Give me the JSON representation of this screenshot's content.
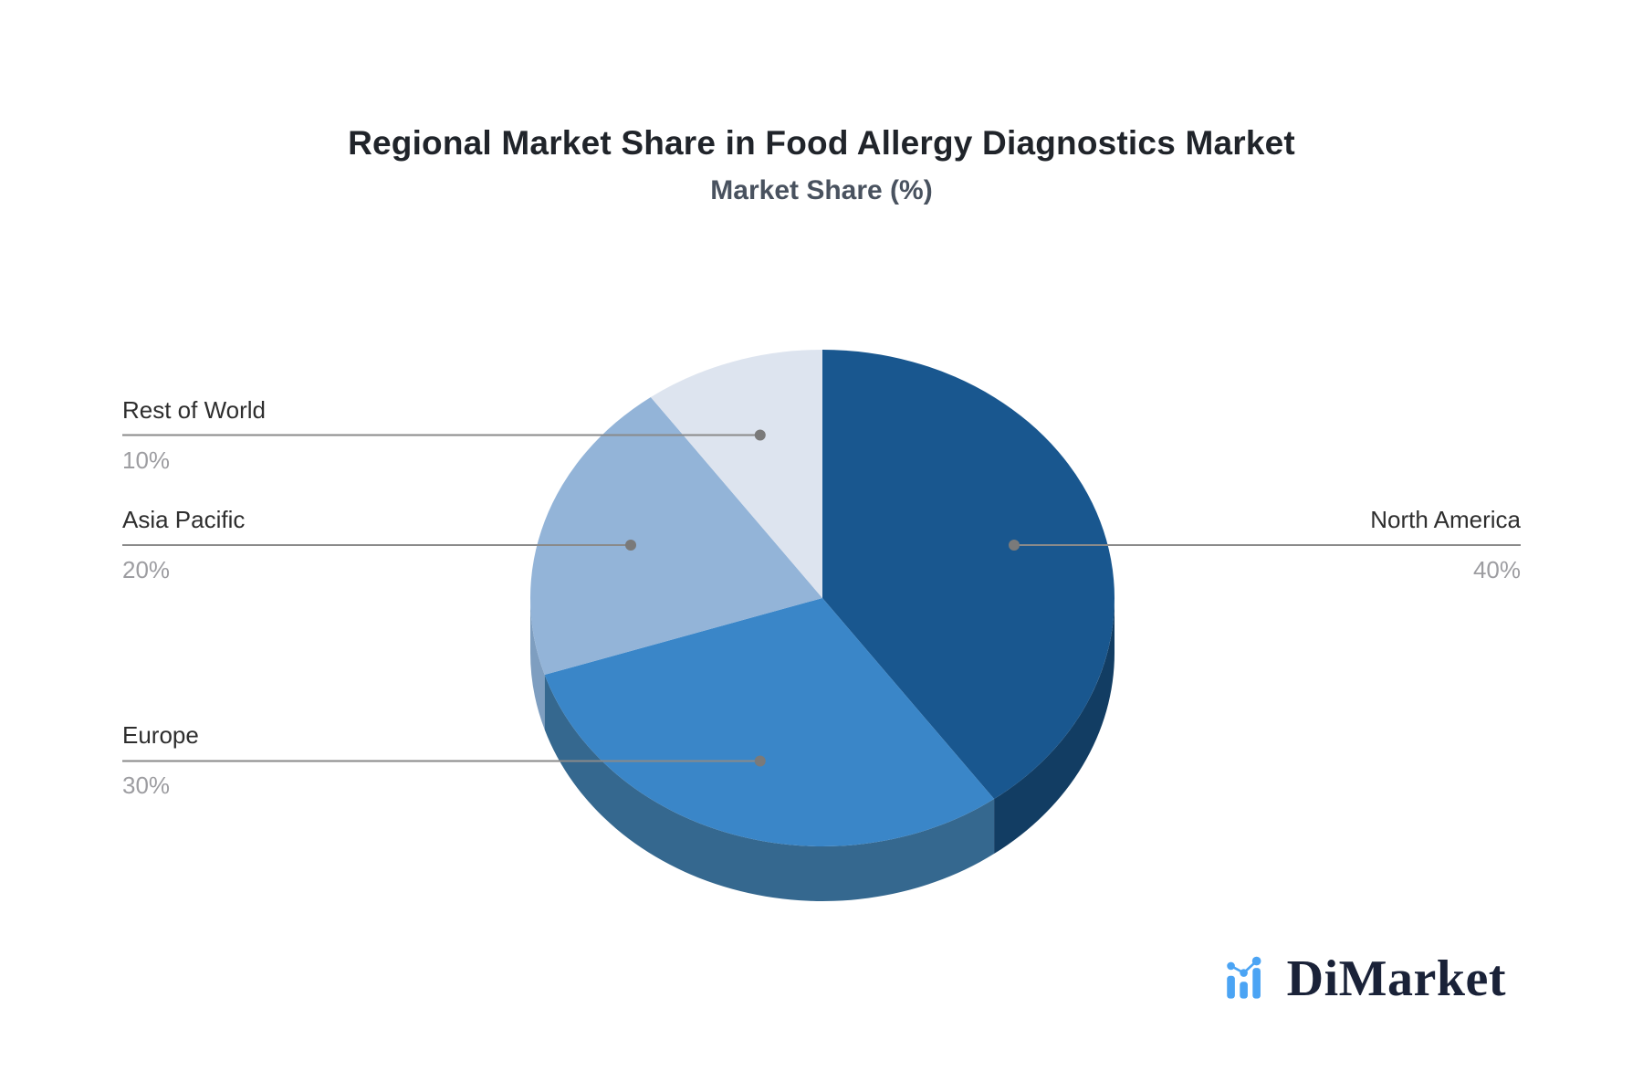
{
  "chart_data": {
    "type": "pie",
    "title": "Regional Market Share in Food Allergy Diagnostics Market",
    "subtitle": "Market Share (%)",
    "unit": "%",
    "start_angle_deg": 0,
    "direction": "clockwise",
    "effect_3d": true,
    "legend_position": "none",
    "slices": [
      {
        "label": "North America",
        "value": 40,
        "pct_label": "40%",
        "color": "#19578F",
        "shade": "#123D63"
      },
      {
        "label": "Europe",
        "value": 30,
        "pct_label": "30%",
        "color": "#3A86C8",
        "shade": "#35688F"
      },
      {
        "label": "Asia Pacific",
        "value": 20,
        "pct_label": "20%",
        "color": "#93B4D8",
        "shade": "#7E9EC0"
      },
      {
        "label": "Rest of World",
        "value": 10,
        "pct_label": "10%",
        "color": "#DDE4EF",
        "shade": "#C3CDDB"
      }
    ],
    "leader_line_color": "#8A8A8A",
    "leader_dot_color": "#7A7A7A",
    "label_color": "#2E2E2E",
    "pct_color": "#9D9DA1"
  },
  "branding": {
    "logo_text": "DiMarket",
    "logo_icon": "bar-line-chart-icon",
    "logo_icon_color": "#4BA4F4",
    "logo_text_color": "#1A2238"
  }
}
